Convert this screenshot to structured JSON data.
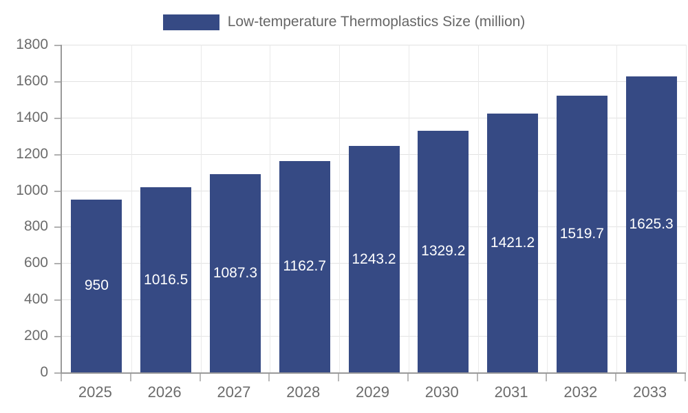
{
  "legend": {
    "label": "Low-temperature Thermoplastics Size (million)",
    "swatch_color": "#364a84"
  },
  "chart_data": {
    "type": "bar",
    "title": "Low-temperature Thermoplastics Size (million)",
    "categories": [
      "2025",
      "2026",
      "2027",
      "2028",
      "2029",
      "2030",
      "2031",
      "2032",
      "2033"
    ],
    "values": [
      950,
      1016.5,
      1087.3,
      1162.7,
      1243.2,
      1329.2,
      1421.2,
      1519.7,
      1625.3
    ],
    "value_labels": [
      "950",
      "1016.5",
      "1087.3",
      "1162.7",
      "1243.2",
      "1329.2",
      "1421.2",
      "1519.7",
      "1625.3"
    ],
    "xlabel": "",
    "ylabel": "",
    "ylim": [
      0,
      1800
    ],
    "ytick_step": 200,
    "ytick_labels": [
      "0",
      "200",
      "400",
      "600",
      "800",
      "1000",
      "1200",
      "1400",
      "1600",
      "1800"
    ],
    "grid": true,
    "legend_position": "top",
    "bar_color": "#364a84",
    "bar_label_color": "#ffffff",
    "axis_text_color": "#6b6b6b",
    "gridline_color": "#e2e2e2",
    "axis_line_color": "#999999"
  }
}
